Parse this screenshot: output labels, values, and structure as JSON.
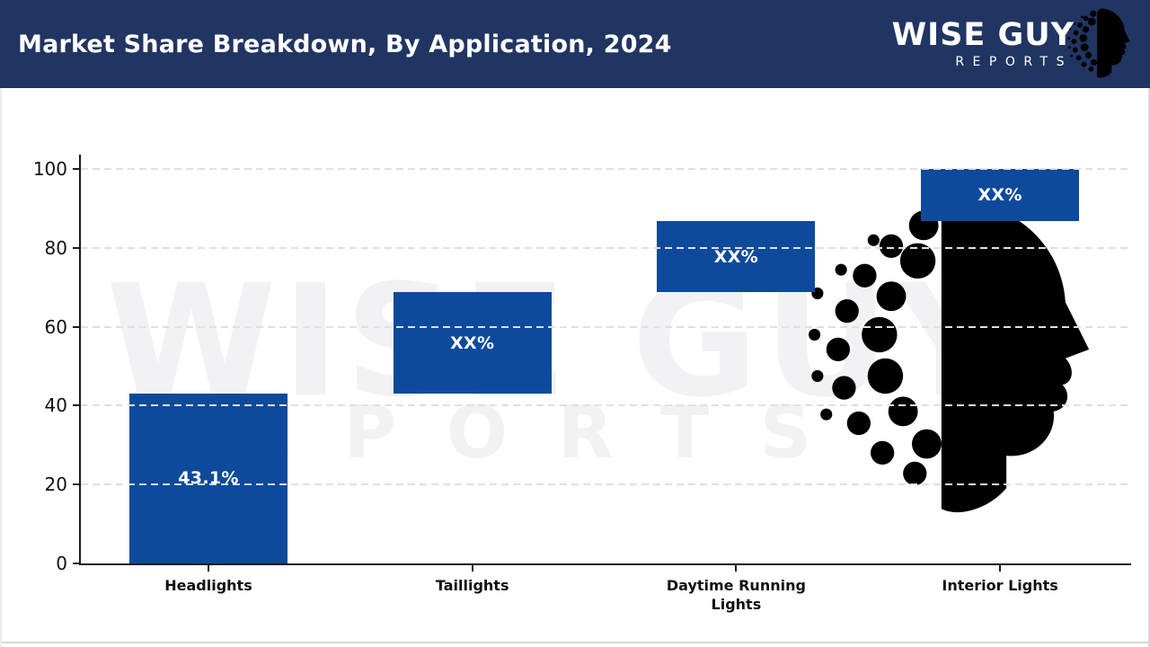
{
  "header": {
    "title": "Market Share Breakdown, By Application, 2024",
    "bg_color": "#213562",
    "logo": {
      "line1": "WISE GUY",
      "line2": "REPORTS"
    }
  },
  "watermark": {
    "line1": "WISE GUY.",
    "line2": "REPORTS"
  },
  "chart_data": {
    "type": "bar",
    "subtype": "floating-waterfall",
    "title": "Market Share Breakdown, By Application, 2024",
    "categories": [
      "Headlights",
      "Taillights",
      "Daytime Running\nLights",
      "Interior Lights"
    ],
    "bars": [
      {
        "category": "Headlights",
        "start": 0,
        "end": 43.1,
        "label": "43.1%"
      },
      {
        "category": "Taillights",
        "start": 43.1,
        "end": 68.7,
        "label": "XX%"
      },
      {
        "category": "Daytime Running Lights",
        "start": 68.7,
        "end": 86.7,
        "label": "XX%"
      },
      {
        "category": "Interior Lights",
        "start": 86.8,
        "end": 100,
        "label": "XX%"
      }
    ],
    "ylim": [
      0,
      100
    ],
    "yticks": [
      0,
      20,
      40,
      60,
      80,
      100
    ],
    "xlabel": "",
    "ylabel": "",
    "grid": "horizontal-dashed",
    "legend": null,
    "bar_color": "#0d4a9c",
    "bar_label_color": "#ffffff",
    "axis_color": "#1c1c1c",
    "gridline_color": "#e0e0e0"
  }
}
